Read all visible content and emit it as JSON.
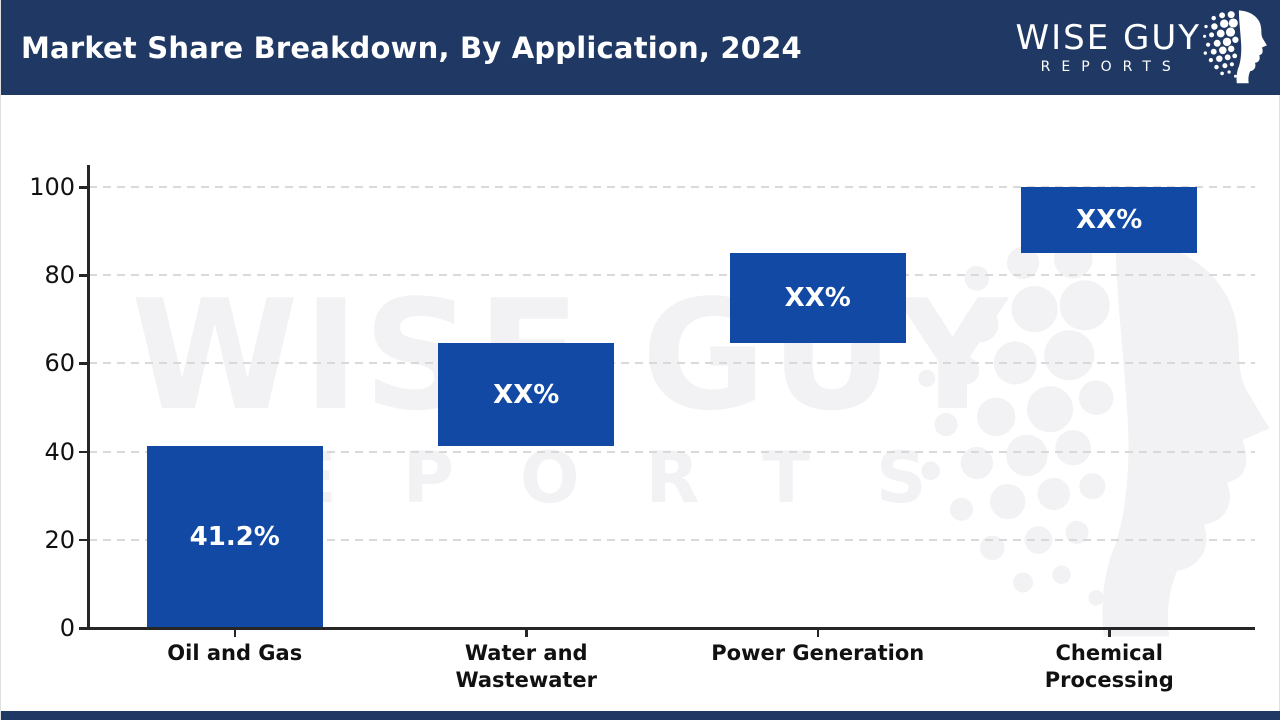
{
  "header": {
    "title": "Market Share Breakdown, By Application, 2024",
    "logo": {
      "name_top": "WISE GUY",
      "name_bottom": "REPORTS"
    }
  },
  "watermark": {
    "line1": "WISE GUY",
    "line2": "REPORTS"
  },
  "colors": {
    "header_bg": "#203864",
    "bar": "#1149a4",
    "grid": "#d9d9d9",
    "axis": "#262626",
    "watermark": "#f2f2f4",
    "bar_label": "#ffffff",
    "tick_label": "#111111"
  },
  "chart_data": {
    "type": "bar",
    "subtype": "waterfall",
    "title": "Market Share Breakdown, By Application, 2024",
    "categories": [
      "Oil and Gas",
      "Water and Wastewater",
      "Power Generation",
      "Chemical Processing"
    ],
    "category_lines": [
      [
        "Oil and Gas"
      ],
      [
        "Water and",
        "Wastewater"
      ],
      [
        "Power Generation"
      ],
      [
        "Chemical",
        "Processing"
      ]
    ],
    "segments": [
      {
        "category": "Oil and Gas",
        "label": "41.2%",
        "start": 0,
        "end": 41.2
      },
      {
        "category": "Water and Wastewater",
        "label": "XX%",
        "start": 41.2,
        "end": 64.6
      },
      {
        "category": "Power Generation",
        "label": "XX%",
        "start": 64.6,
        "end": 85.0
      },
      {
        "category": "Chemical Processing",
        "label": "XX%",
        "start": 85.0,
        "end": 100.0
      }
    ],
    "ylim": [
      0,
      100
    ],
    "yticks": [
      0,
      20,
      40,
      60,
      80,
      100
    ],
    "grid": true,
    "legend": false,
    "xlabel": "",
    "ylabel": ""
  }
}
